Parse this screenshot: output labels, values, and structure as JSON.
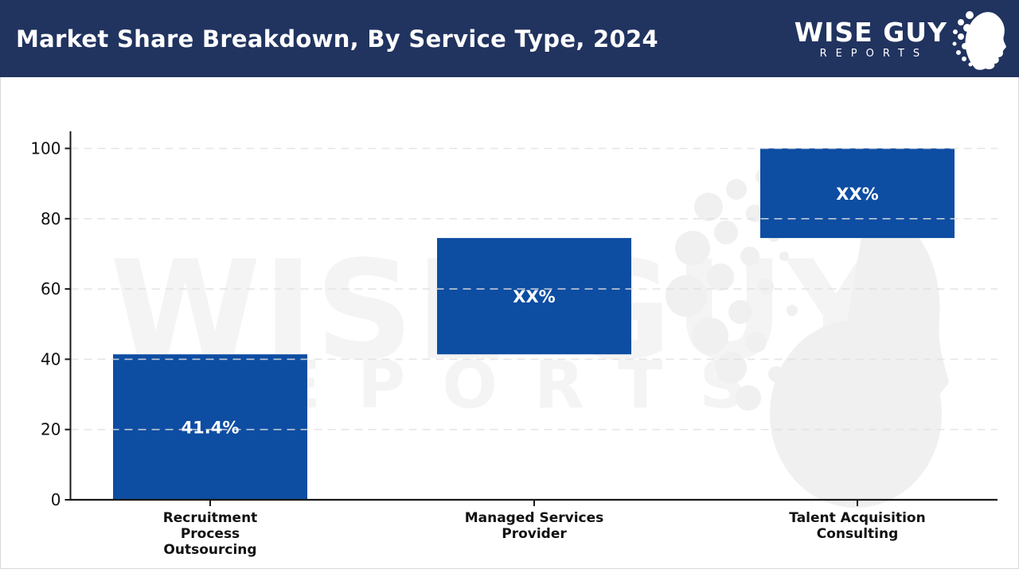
{
  "header": {
    "title": "Market Share Breakdown, By Service Type, 2024",
    "logo": {
      "name": "WISE GUY",
      "sub": "REPORTS"
    }
  },
  "watermark": {
    "line1": "WISE GUY",
    "line2": "REPORTS"
  },
  "colors": {
    "header_bg": "#21335f",
    "bar": "#0d4da2",
    "bar_label": "#ffffff",
    "axis": "#1a1a1a",
    "tick_label": "#111111",
    "category_label": "#111111",
    "gridline": "rgba(225,225,225,0.85)",
    "watermark": "#f4f4f4",
    "watermark_dots": "#f0f0f0",
    "page_border": "#d9d9d9"
  },
  "chart_data": {
    "type": "bar",
    "variant": "stacked-waterfall",
    "title": "Market Share Breakdown, By Service Type, 2024",
    "categories": [
      "Recruitment Process Outsourcing",
      "Managed Services Provider",
      "Talent Acquisition Consulting"
    ],
    "category_label_lines": [
      [
        "Recruitment",
        "Process",
        "Outsourcing"
      ],
      [
        "Managed Services",
        "Provider"
      ],
      [
        "Talent Acquisition",
        "Consulting"
      ]
    ],
    "bars": [
      {
        "category": "Recruitment Process Outsourcing",
        "start": 0,
        "end": 41.4,
        "label": "41.4%"
      },
      {
        "category": "Managed Services Provider",
        "start": 41.4,
        "end": 74.5,
        "label": "XX%"
      },
      {
        "category": "Talent Acquisition Consulting",
        "start": 74.5,
        "end": 100,
        "label": "XX%"
      }
    ],
    "ylim": [
      0,
      100
    ],
    "yticks": [
      0,
      20,
      40,
      60,
      80,
      100
    ],
    "xlabel": "",
    "ylabel": "",
    "legend": null,
    "grid": {
      "axis": "y",
      "style": "dashed"
    }
  }
}
